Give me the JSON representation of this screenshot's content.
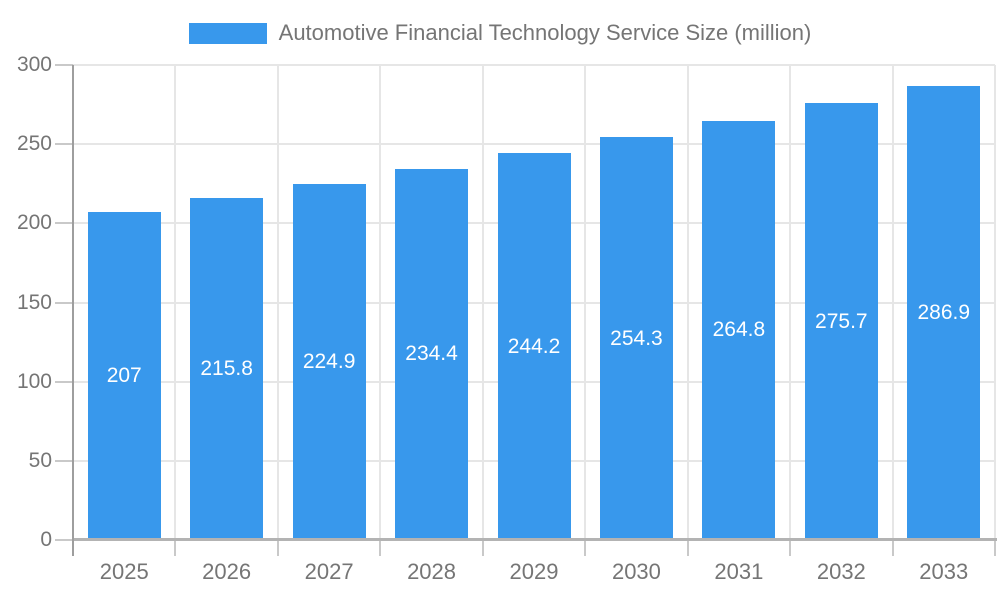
{
  "legend": {
    "label": "Automotive Financial Technology Service Size (million)"
  },
  "colors": {
    "bar": "#3898ec",
    "axis_text": "#757575",
    "bar_label_text": "#ffffff",
    "grid_line": "#e6e6e6",
    "y_axis_line": "#9e9e9e",
    "baseline": "#b3b3b3",
    "tick": "#c9c9c9",
    "background": "#ffffff"
  },
  "chart_data": {
    "type": "bar",
    "title": "",
    "series_name": "Automotive Financial Technology Service Size (million)",
    "categories": [
      "2025",
      "2026",
      "2027",
      "2028",
      "2029",
      "2030",
      "2031",
      "2032",
      "2033"
    ],
    "values": [
      207,
      215.8,
      224.9,
      234.4,
      244.2,
      254.3,
      264.8,
      275.7,
      286.9
    ],
    "bar_labels": [
      "207",
      "215.8",
      "224.9",
      "234.4",
      "244.2",
      "254.3",
      "264.8",
      "275.7",
      "286.9"
    ],
    "xlabel": "",
    "ylabel": "",
    "ylim": [
      0,
      300
    ],
    "ytick_step": 50,
    "yticks": [
      0,
      50,
      100,
      150,
      200,
      250,
      300
    ],
    "grid": true,
    "legend_position": "top",
    "bar_label_position": "inside-center"
  }
}
